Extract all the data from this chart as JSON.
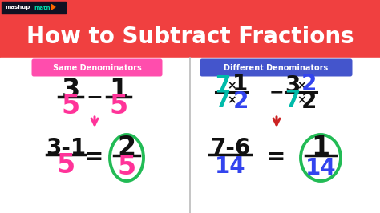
{
  "title": "How to Subtract Fractions",
  "title_bg": "#F04040",
  "title_color": "#FFFFFF",
  "left_label": "Same Denominators",
  "right_label": "Different Denominators",
  "left_label_bg": "#FF4DAD",
  "right_label_bg": "#4455CC",
  "pink": "#FF3399",
  "teal": "#00BBAA",
  "blue": "#3344EE",
  "dark": "#111111",
  "green": "#22BB55",
  "arrow_pink": "#FF3399",
  "arrow_red": "#CC2222",
  "divider_color": "#BBBBBB",
  "mashup_bg": "#111122",
  "white": "#FFFFFF"
}
